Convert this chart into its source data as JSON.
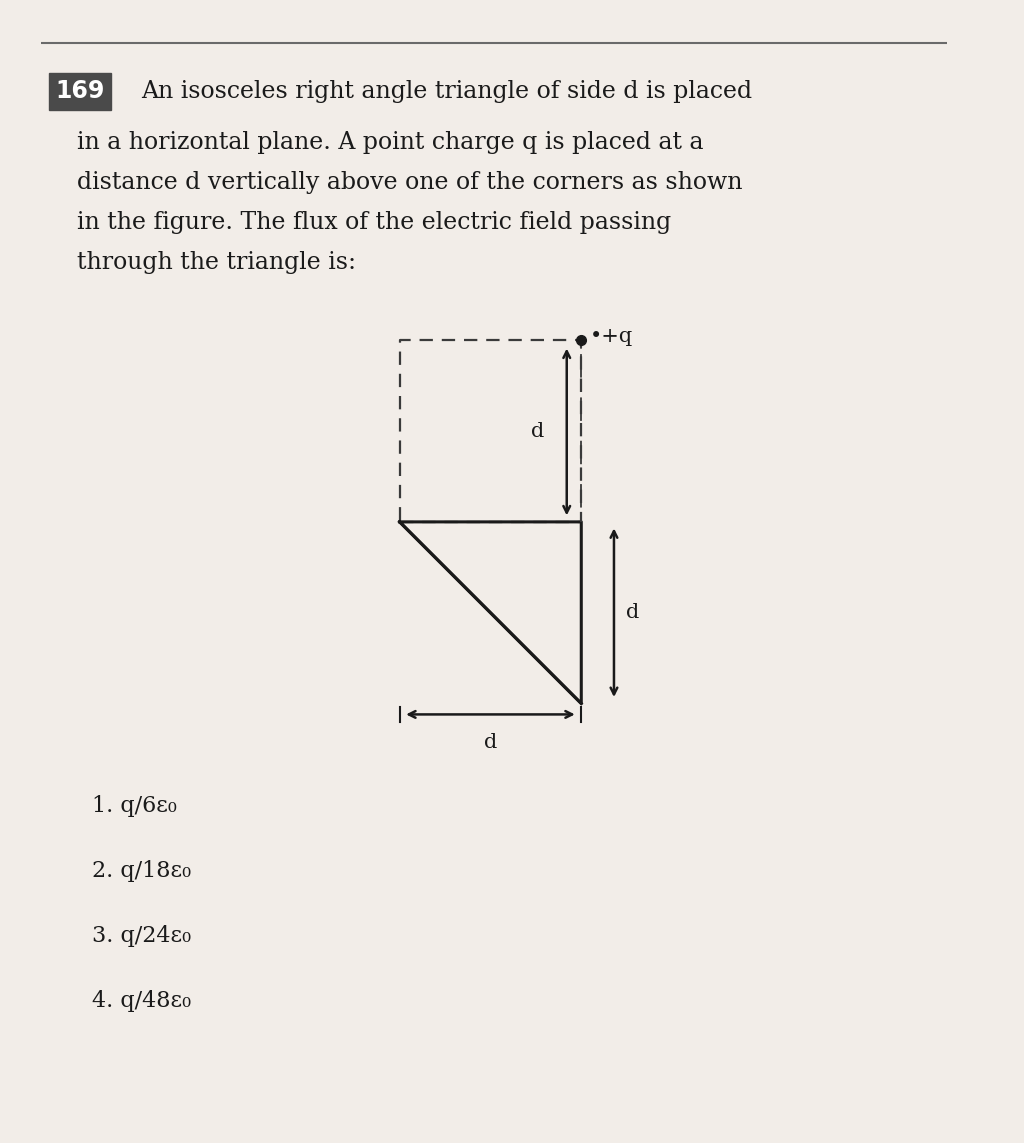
{
  "bg_color": "#f2ede8",
  "title_number": "169",
  "title_number_bg": "#4a4a4a",
  "title_number_color": "#ffffff",
  "line1": "An isosceles right angle triangle of side d is placed",
  "line2": "in a horizontal plane. A point charge q is placed at a",
  "line3": "distance d vertically above one of the corners as shown",
  "line4": "in the figure. The flux of the electric field passing",
  "line5": "through the triangle is:",
  "title_fontsize": 17,
  "choices": [
    "1. q/6ε₀",
    "2. q/18ε₀",
    "3. q/24ε₀",
    "4. q/48ε₀"
  ],
  "choices_fontsize": 16,
  "charge_label": "•+q",
  "label_d": "d",
  "right_bar_color": "#b0a898",
  "line_color": "#1a1a1a",
  "dashed_color": "#3a3a3a",
  "top_line_color": "#6a6a6a"
}
